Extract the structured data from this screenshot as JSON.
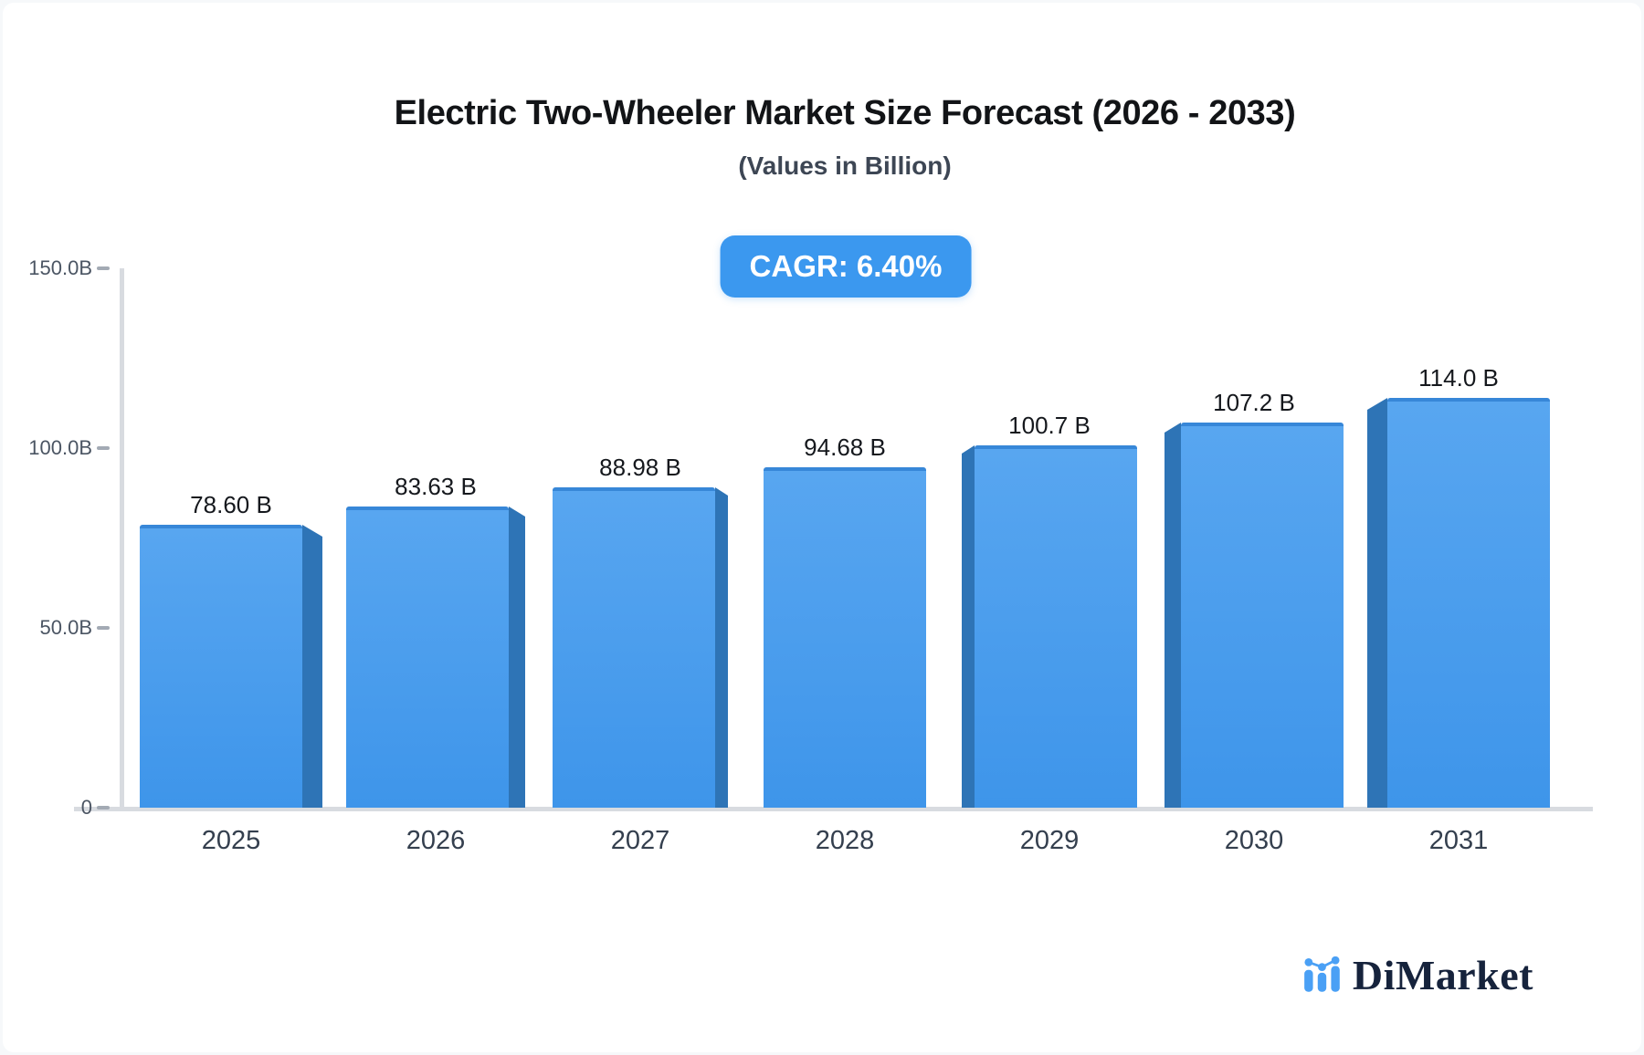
{
  "header": {
    "title": "Electric Two-Wheeler Market Size Forecast (2026 - 2033)",
    "subtitle": "(Values in Billion)",
    "cagr_badge": "CAGR: 6.40%"
  },
  "chart_data": {
    "type": "bar",
    "title": "Electric Two-Wheeler Market Size Forecast (2026 - 2033)",
    "subtitle": "(Values in Billion)",
    "unit": "Billion",
    "cagr": "6.40%",
    "categories": [
      "2025",
      "2026",
      "2027",
      "2028",
      "2029",
      "2030",
      "2031"
    ],
    "values": [
      78.6,
      83.63,
      88.98,
      94.68,
      100.7,
      107.2,
      114.0
    ],
    "value_labels": [
      "78.60 B",
      "83.63 B",
      "88.98 B",
      "94.68 B",
      "100.7 B",
      "107.2 B",
      "114.0 B"
    ],
    "ylim": [
      0,
      150
    ],
    "y_ticks": [
      {
        "label": "0",
        "value": 0
      },
      {
        "label": "50.0B",
        "value": 50
      },
      {
        "label": "100.0B",
        "value": 100
      },
      {
        "label": "150.0B",
        "value": 150
      }
    ],
    "xlabel": "",
    "ylabel": "",
    "grid": false,
    "legend": "none",
    "bar_style": "3d-perspective-center"
  },
  "colors": {
    "badge_background": "#3b98ef",
    "bar_face_top": "#58a6f0",
    "bar_face_bottom": "#3e95ea",
    "bar_top_edge": "#3787d8",
    "bar_side_3d": "#2e74b6",
    "axis_line": "#d8dbe0",
    "brand_navy": "#16233c",
    "brand_blue": "#4aa0f5"
  },
  "footer": {
    "brand": "DiMarket"
  }
}
